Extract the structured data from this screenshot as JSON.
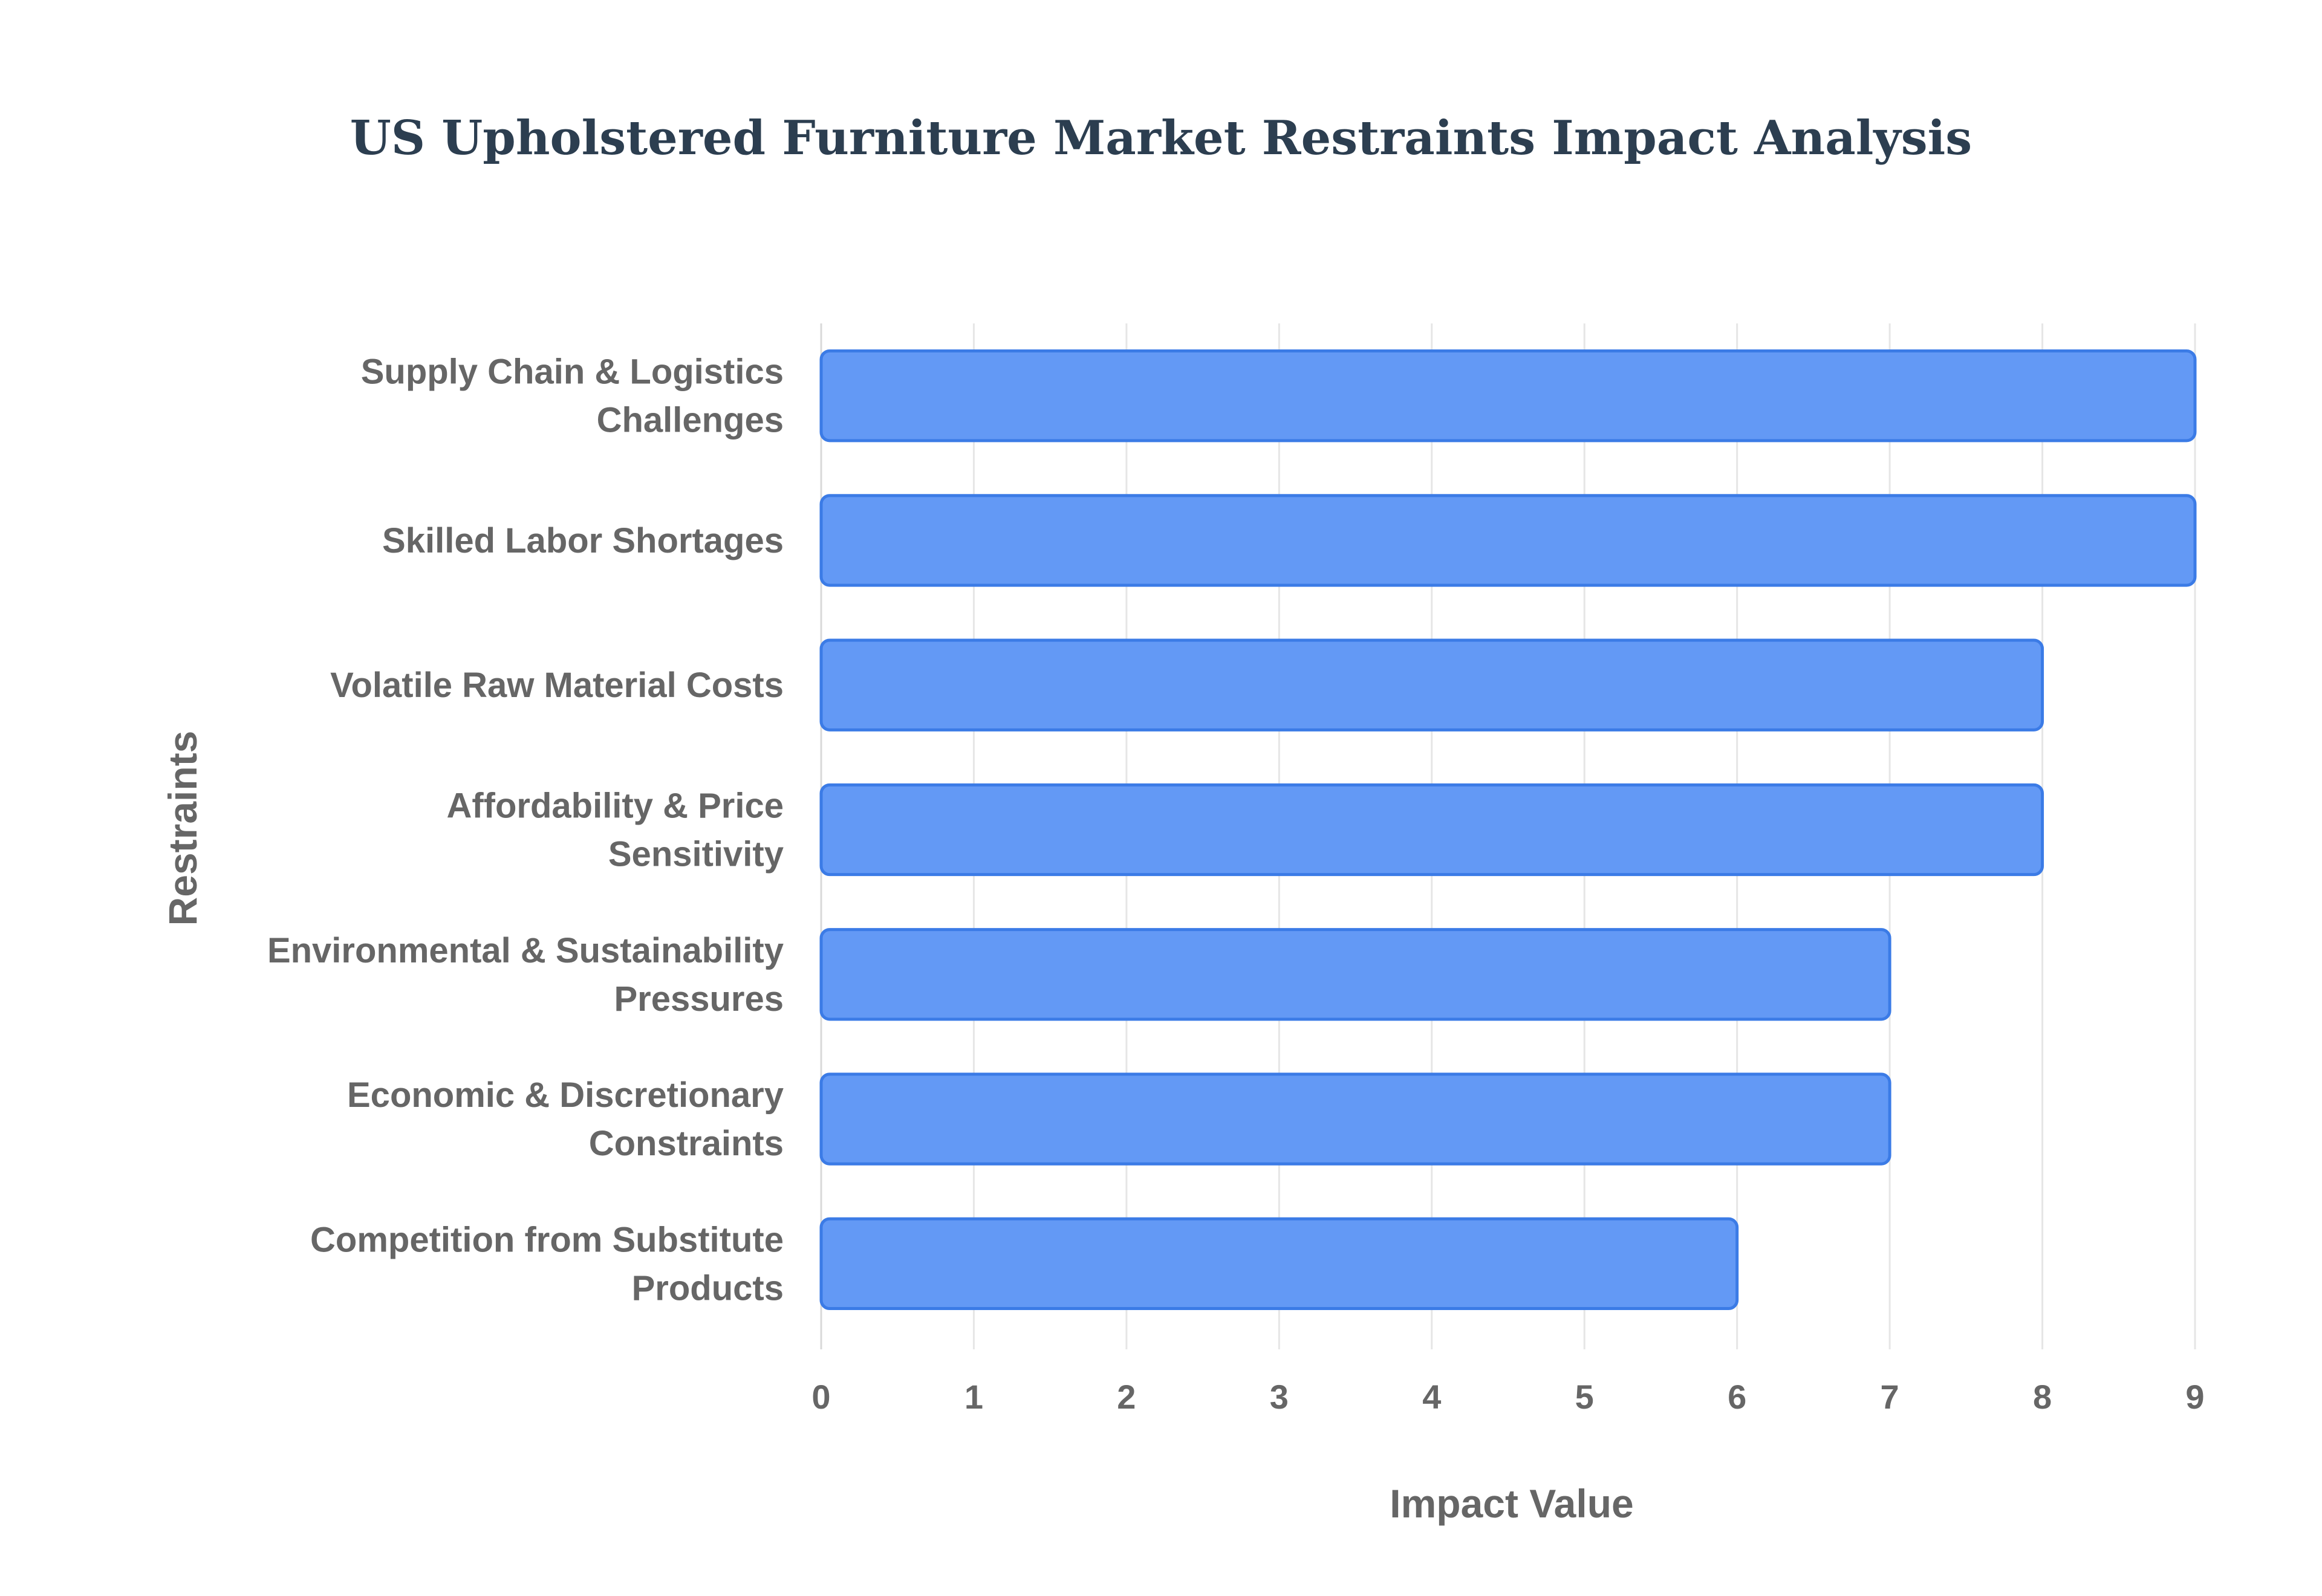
{
  "chart_data": {
    "type": "bar",
    "orientation": "horizontal",
    "title": "US Upholstered Furniture Market Restraints Impact Analysis",
    "xlabel": "Impact Value",
    "ylabel": "Restraints",
    "xlim": [
      0,
      9
    ],
    "x_ticks": [
      "0",
      "1",
      "2",
      "3",
      "4",
      "5",
      "6",
      "7",
      "8",
      "9"
    ],
    "grid": true,
    "legend": "none",
    "bar_color": "#6399f5",
    "bar_border_color": "#3b7be6",
    "categories": [
      [
        "Supply Chain & Logistics",
        "Challenges"
      ],
      [
        "Skilled Labor Shortages"
      ],
      [
        "Volatile Raw Material Costs"
      ],
      [
        "Affordability & Price",
        "Sensitivity"
      ],
      [
        "Environmental & Sustainability",
        "Pressures"
      ],
      [
        "Economic & Discretionary",
        "Constraints"
      ],
      [
        "Competition from Substitute",
        "Products"
      ]
    ],
    "values": [
      9,
      9,
      8,
      8,
      7,
      7,
      6
    ]
  }
}
